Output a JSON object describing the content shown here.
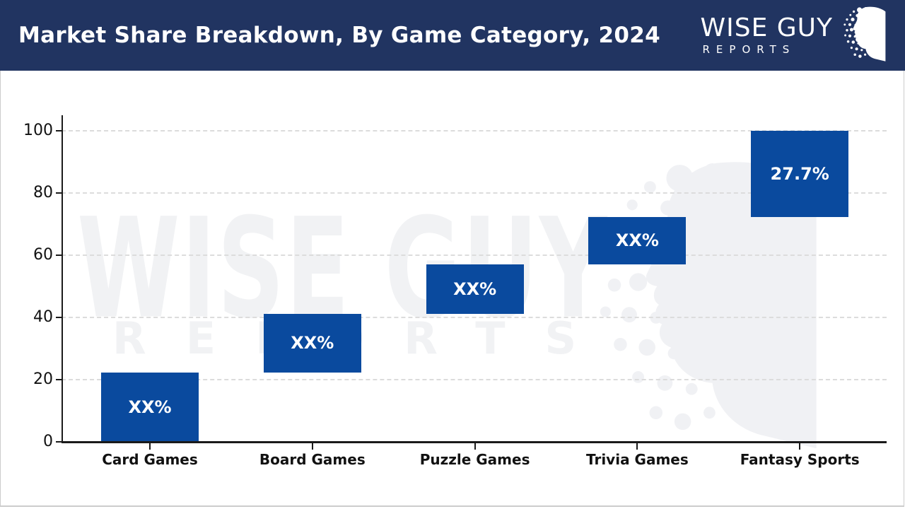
{
  "header": {
    "title": "Market Share Breakdown, By Game Category, 2024",
    "colors": {
      "bg": "#213461",
      "text": "#ffffff"
    },
    "logo": {
      "line1": "WISE GUY",
      "line2": "REPORTS"
    }
  },
  "watermark": {
    "line1": "WISE GUY",
    "line2": "REPORTS"
  },
  "chart_data": {
    "type": "bar",
    "subtype": "waterfall",
    "title": "Market Share Breakdown, By Game Category, 2024",
    "categories": [
      "Card Games",
      "Board Games",
      "Puzzle Games",
      "Trivia Games",
      "Fantasy Sports"
    ],
    "segments": [
      {
        "category": "Card Games",
        "start": 0,
        "end": 22.3,
        "label": "XX%"
      },
      {
        "category": "Board Games",
        "start": 22.3,
        "end": 41.2,
        "label": "XX%"
      },
      {
        "category": "Puzzle Games",
        "start": 41.2,
        "end": 57.1,
        "label": "XX%"
      },
      {
        "category": "Trivia Games",
        "start": 57.1,
        "end": 72.3,
        "label": "XX%"
      },
      {
        "category": "Fantasy Sports",
        "start": 72.3,
        "end": 100,
        "label": "27.7%"
      }
    ],
    "yticks": [
      0,
      20,
      40,
      60,
      80,
      100
    ],
    "ylim": [
      0,
      105
    ],
    "xlabel": "",
    "ylabel": "",
    "legend": "none",
    "grid": "horizontal-dashed",
    "bar_color": "#0a4a9e",
    "grid_color": "#dcdcdc",
    "axis_color": "#1a1a1a",
    "bar_label_color": "#ffffff"
  }
}
